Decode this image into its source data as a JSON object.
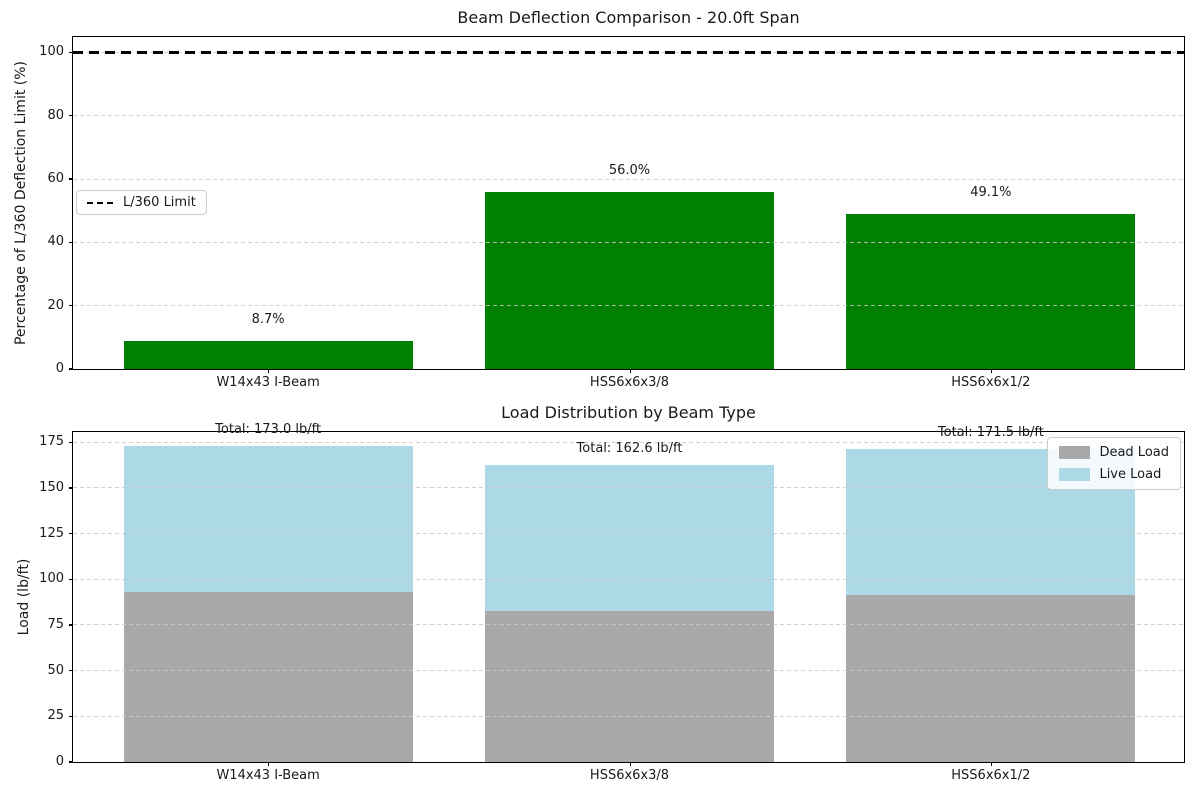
{
  "figure": {
    "background": "#ffffff",
    "text_color": "#1a1a1a",
    "grid_color": "#c9c9c9"
  },
  "chart_data": [
    {
      "type": "bar",
      "title": "Beam Deflection Comparison - 20.0ft Span",
      "ylabel": "Percentage of L/360 Deflection Limit (%)",
      "categories": [
        "W14x43 I-Beam",
        "HSS6x6x3/8",
        "HSS6x6x1/2"
      ],
      "values": [
        8.7,
        56.0,
        49.1
      ],
      "bar_labels": [
        "8.7%",
        "56.0%",
        "49.1%"
      ],
      "bar_color": "#008000",
      "ylim": [
        0,
        105.5
      ],
      "yticks": [
        0,
        20,
        40,
        60,
        80,
        100
      ],
      "grid": true,
      "legend_position": "center left",
      "reference_line": {
        "value": 100,
        "color": "#000000",
        "style": "dashed",
        "legend_label": "L/360 Limit"
      }
    },
    {
      "type": "bar",
      "stacked": true,
      "title": "Load Distribution by Beam Type",
      "ylabel": "Load (lb/ft)",
      "categories": [
        "W14x43 I-Beam",
        "HSS6x6x3/8",
        "HSS6x6x1/2"
      ],
      "series": [
        {
          "name": "Dead Load",
          "color": "#a9a9a9",
          "values": [
            93.0,
            82.6,
            91.5
          ]
        },
        {
          "name": "Live Load",
          "color": "#add8e6",
          "values": [
            80.0,
            80.0,
            80.0
          ]
        }
      ],
      "totals": [
        173.0,
        162.6,
        171.5
      ],
      "total_labels": [
        "Total: 173.0 lb/ft",
        "Total: 162.6 lb/ft",
        "Total: 171.5 lb/ft"
      ],
      "ylim": [
        0,
        181.7
      ],
      "yticks": [
        0,
        25,
        50,
        75,
        100,
        125,
        150,
        175
      ],
      "grid": true,
      "legend_position": "upper right"
    }
  ]
}
